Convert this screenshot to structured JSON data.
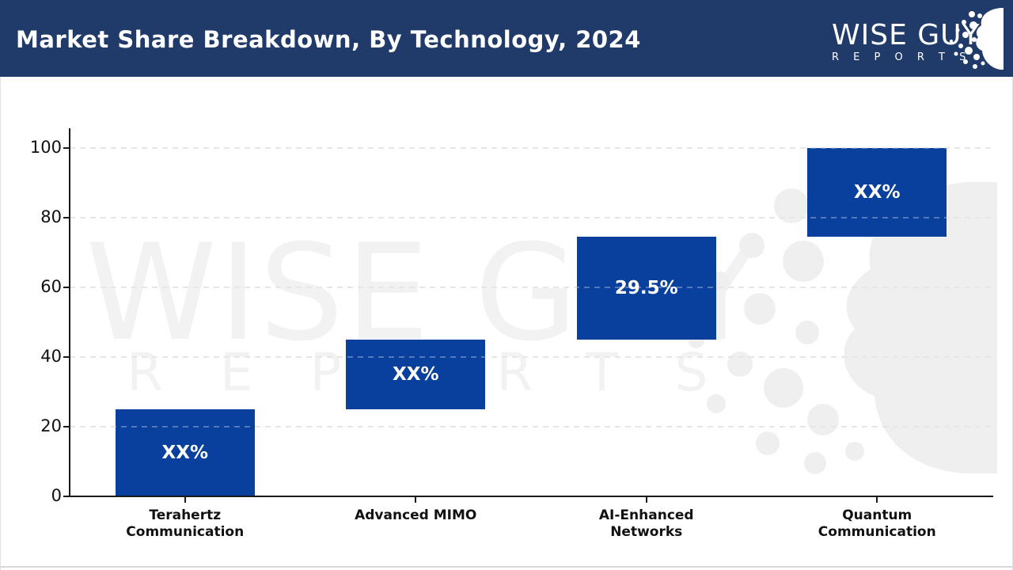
{
  "header": {
    "title": "Market Share Breakdown, By Technology, 2024",
    "logo_line1": "WISE GUY",
    "logo_line2": "R E P O R T S"
  },
  "watermark": {
    "line1": "WISE GUY",
    "line2": "REPORTS"
  },
  "chart_data": {
    "type": "bar",
    "subtype": "waterfall",
    "title": "Market Share Breakdown, By Technology, 2024",
    "xlabel": "",
    "ylabel": "",
    "ylim": [
      0,
      105
    ],
    "y_ticks": [
      0,
      20,
      40,
      60,
      80,
      100
    ],
    "grid": "dashed-horizontal",
    "bar_color": "#09409e",
    "categories": [
      "Terahertz Communication",
      "Advanced MIMO",
      "AI-Enhanced Networks",
      "Quantum Communication"
    ],
    "bars": [
      {
        "category": "Terahertz Communication",
        "lines": [
          "Terahertz",
          "Communication"
        ],
        "start": 0,
        "end": 25,
        "value": 25,
        "label": "XX%"
      },
      {
        "category": "Advanced MIMO",
        "lines": [
          "Advanced MIMO"
        ],
        "start": 25,
        "end": 45,
        "value": 20,
        "label": "XX%"
      },
      {
        "category": "AI-Enhanced Networks",
        "lines": [
          "AI-Enhanced",
          "Networks"
        ],
        "start": 45,
        "end": 74.5,
        "value": 29.5,
        "label": "29.5%"
      },
      {
        "category": "Quantum Communication",
        "lines": [
          "Quantum",
          "Communication"
        ],
        "start": 74.5,
        "end": 100,
        "value": 25.5,
        "label": "XX%"
      }
    ]
  }
}
